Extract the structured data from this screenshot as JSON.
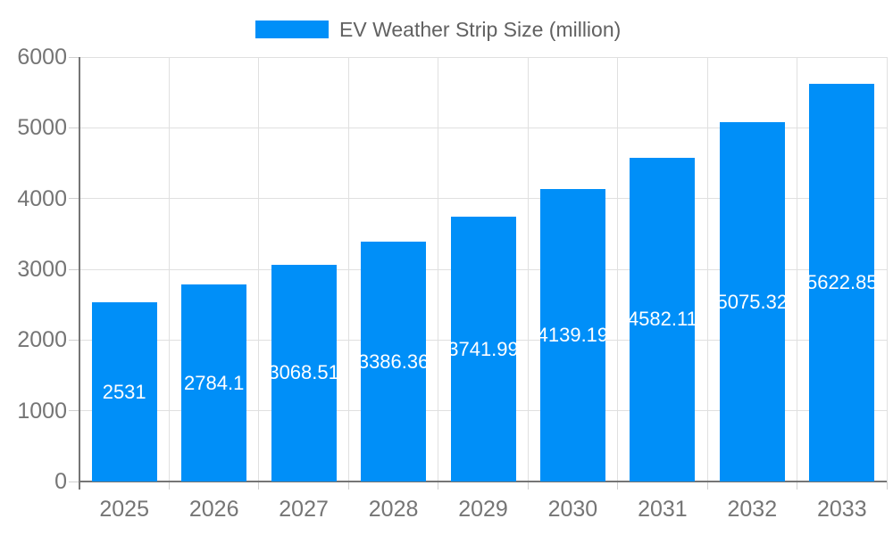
{
  "chart_data": {
    "type": "bar",
    "title": "EV Weather Strip Size (million)",
    "categories": [
      "2025",
      "2026",
      "2027",
      "2028",
      "2029",
      "2030",
      "2031",
      "2032",
      "2033"
    ],
    "values": [
      2531,
      2784.1,
      3068.51,
      3386.36,
      3741.99,
      4139.19,
      4582.11,
      5075.32,
      5622.85
    ],
    "value_labels": [
      "2531",
      "2784.1",
      "3068.51",
      "3386.36",
      "3741.99",
      "4139.19",
      "4582.11",
      "5075.32",
      "5622.85"
    ],
    "xlabel": "",
    "ylabel": "",
    "ylim": [
      0,
      6000
    ],
    "y_ticks": [
      0,
      1000,
      2000,
      3000,
      4000,
      5000,
      6000
    ],
    "y_tick_labels": [
      "0",
      "1000",
      "2000",
      "3000",
      "4000",
      "5000",
      "6000"
    ],
    "grid": true,
    "legend_position": "top-center",
    "colors": {
      "bar": "#008ff8",
      "grid": "#e0e0e0",
      "tick": "#cfcfcf",
      "axis_line": "#757575",
      "axis_text": "#757575",
      "legend_text": "#616161",
      "value_label": "#ffffff",
      "background": "#ffffff"
    }
  }
}
